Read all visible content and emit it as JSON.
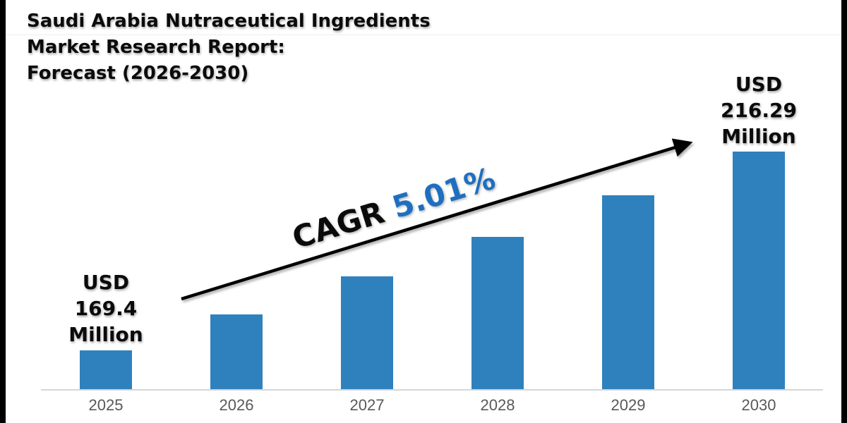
{
  "title": {
    "line1": "Saudi Arabia Nutraceutical Ingredients",
    "line2": "Market Research Report:",
    "line3": "Forecast (2026-2030)"
  },
  "cagr": {
    "prefix": "CAGR ",
    "value": "5.01%",
    "value_color": "#1E6FC0"
  },
  "value_labels": {
    "start": {
      "category": "2025",
      "lines": [
        "USD",
        "169.4",
        "Million"
      ]
    },
    "end": {
      "category": "2030",
      "lines": [
        "USD",
        "216.29",
        "Million"
      ]
    }
  },
  "chart_data": {
    "type": "bar",
    "title": "Saudi Arabia Nutraceutical Ingredients Market Research Report: Forecast (2026-2030)",
    "categories": [
      "2025",
      "2026",
      "2027",
      "2028",
      "2029",
      "2030"
    ],
    "values": [
      169.4,
      177.9,
      186.8,
      196.2,
      206.0,
      216.29
    ],
    "value_unit": "USD Million",
    "labeled_points": {
      "2025": "USD 169.4 Million",
      "2030": "USD 216.29 Million"
    },
    "cagr": "5.01%",
    "bar_color": "#2F81BE",
    "xlabel_color": "#595959",
    "axis_line_color": "#D6D6D6",
    "arrow_color": "#000000",
    "ylim": [
      160,
      220
    ],
    "grid": false,
    "legend": false,
    "annotation": "CAGR 5.01% trend arrow from 2025 label toward 2030 label"
  }
}
